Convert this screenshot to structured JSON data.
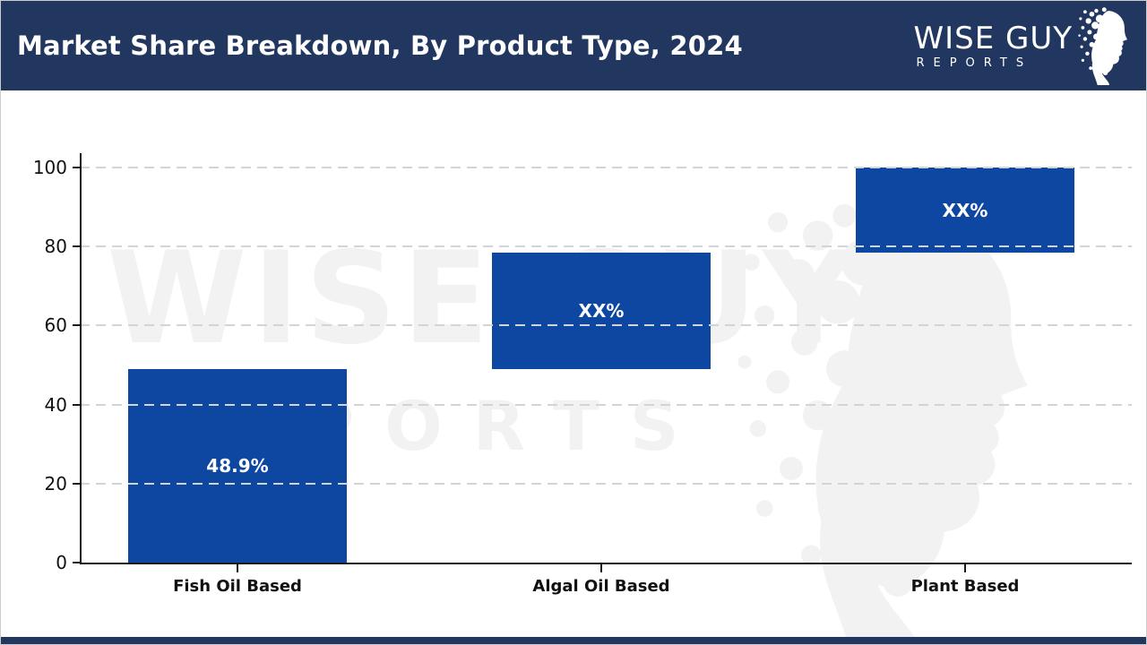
{
  "header": {
    "title": "Market Share Breakdown, By Product Type, 2024",
    "logo": {
      "line1": "WISE GUY",
      "line2": "REPORTS"
    }
  },
  "watermark": {
    "line1": "WISE GUY",
    "line2": "REPORTS"
  },
  "chart_data": {
    "type": "bar",
    "subtype": "waterfall",
    "title": "Market Share Breakdown, By Product Type, 2024",
    "categories": [
      "Fish Oil Based",
      "Algal Oil Based",
      "Plant Based"
    ],
    "segments": [
      {
        "category": "Fish Oil Based",
        "start": 0,
        "end": 48.9,
        "label": "48.9%"
      },
      {
        "category": "Algal Oil Based",
        "start": 48.9,
        "end": 78.4,
        "label": "XX%"
      },
      {
        "category": "Plant Based",
        "start": 78.4,
        "end": 100,
        "label": "XX%"
      }
    ],
    "xlabel": "",
    "ylabel": "",
    "ylim": [
      0,
      100
    ],
    "yticks": [
      0,
      20,
      40,
      60,
      80,
      100
    ],
    "grid": "horizontal-dashed",
    "legend": "none",
    "bar_color": "#0d47a1",
    "label_color": "#ffffff",
    "accent_navy": "#21375f"
  }
}
